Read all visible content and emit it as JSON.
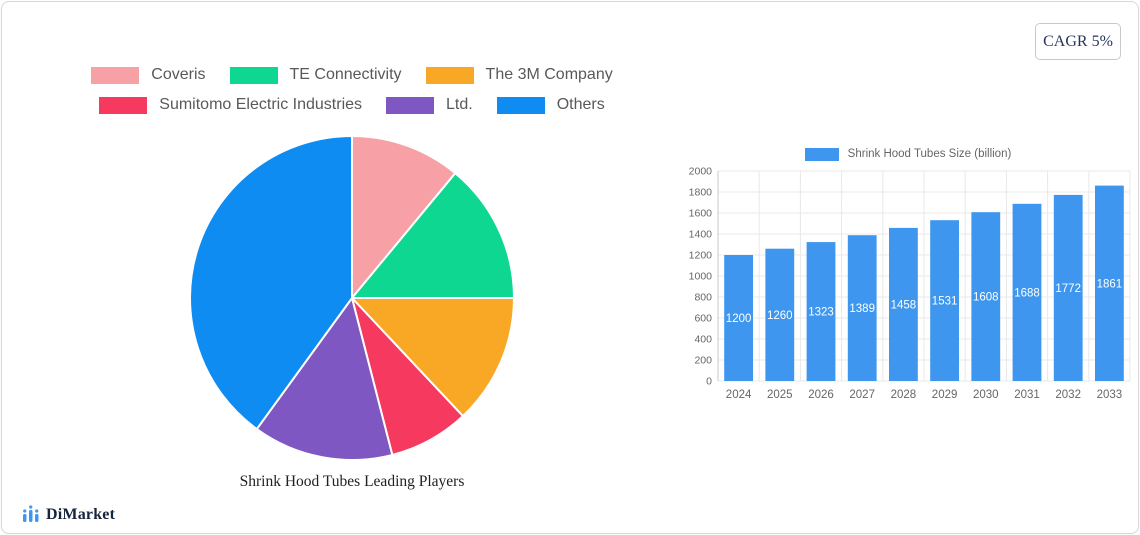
{
  "badge": {
    "label": "CAGR 5%"
  },
  "branding": {
    "logo_text": "DiMarket",
    "logo_icon": "bar-chart-logo-icon",
    "logo_color": "#3e97f0"
  },
  "colors": {
    "bar_blue": "#3e96ee",
    "grid": "#e8e8e8",
    "axis": "#c9c9c9",
    "tick_text": "#666666",
    "legend_text": "#595959"
  },
  "chart_data": [
    {
      "type": "pie",
      "title": "Shrink Hood Tubes Leading Players",
      "labels": [
        "Coveris",
        "TE Connectivity",
        "The 3M Company",
        "Sumitomo Electric Industries",
        "Ltd.",
        "Others"
      ],
      "values": [
        11,
        14,
        13,
        8,
        14,
        40
      ],
      "colors": [
        "#f7a1a7",
        "#0ed792",
        "#f9a825",
        "#f6395f",
        "#7e57c2",
        "#0e8cf1"
      ],
      "start": "12-oclock",
      "direction": "clockwise",
      "legend_position": "top",
      "slice_border_color": "#ffffff"
    },
    {
      "type": "bar",
      "legend": "Shrink Hood Tubes Size (billion)",
      "categories": [
        "2024",
        "2025",
        "2026",
        "2027",
        "2028",
        "2029",
        "2030",
        "2031",
        "2032",
        "2033"
      ],
      "values": [
        1200,
        1260,
        1323,
        1389,
        1458,
        1531,
        1608,
        1688,
        1772,
        1861
      ],
      "bar_color": "#3e96ee",
      "value_label_color": "#ffffff",
      "xlabel": "",
      "ylabel": "",
      "ylim": [
        0,
        2000
      ],
      "ytick_step": 200,
      "grid": true,
      "legend_position": "top"
    }
  ]
}
